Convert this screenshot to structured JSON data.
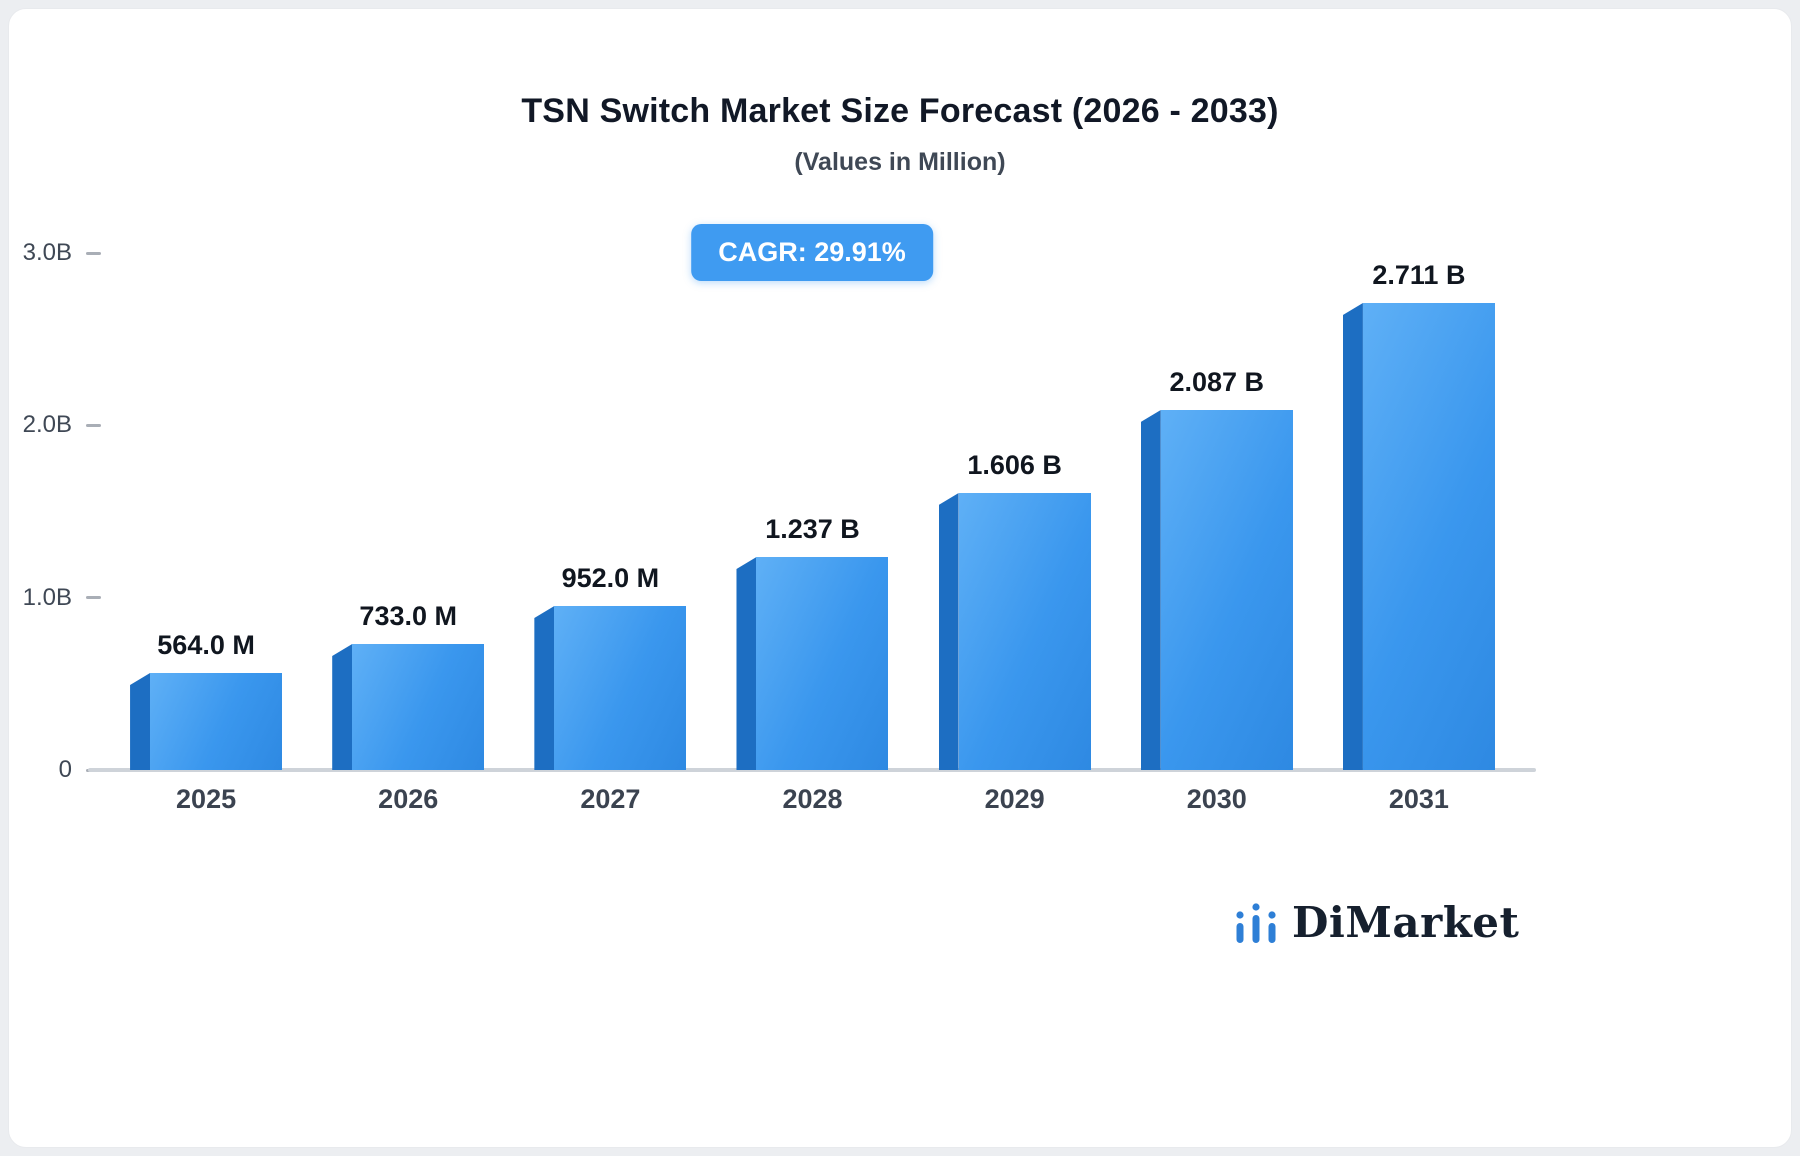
{
  "header": {
    "title": "TSN Switch Market Size Forecast (2026 - 2033)",
    "subtitle": "(Values in Million)",
    "cagr_badge": "CAGR: 29.91%"
  },
  "logo": {
    "text": "DiMarket",
    "icon": "bar-chart-dots-icon"
  },
  "colors": {
    "bar_face_light": "#5fb0f6",
    "bar_face": "#3a97ee",
    "bar_side": "#1d6ec2",
    "badge_bg": "#3f9bf1",
    "axis_line": "#ced3d9",
    "logo_blue": "#2e7fd6"
  },
  "chart_data": {
    "type": "bar",
    "title": "TSN Switch Market Size Forecast (2026 - 2033)",
    "subtitle": "(Values in Million)",
    "cagr_percent": 29.91,
    "categories": [
      "2025",
      "2026",
      "2027",
      "2028",
      "2029",
      "2030",
      "2031"
    ],
    "values_millions": [
      564.0,
      733.0,
      952.0,
      1237,
      1606,
      2087,
      2711
    ],
    "value_labels": [
      "564.0 M",
      "733.0 M",
      "952.0 M",
      "1.237 B",
      "1.606 B",
      "2.087 B",
      "2.711 B"
    ],
    "ylim_millions": [
      0,
      3000
    ],
    "yticks": [
      {
        "value": 0,
        "label": "0"
      },
      {
        "value": 1000,
        "label": "1.0B"
      },
      {
        "value": 2000,
        "label": "2.0B"
      },
      {
        "value": 3000,
        "label": "3.0B"
      }
    ],
    "legend": "none",
    "grid": "off"
  }
}
